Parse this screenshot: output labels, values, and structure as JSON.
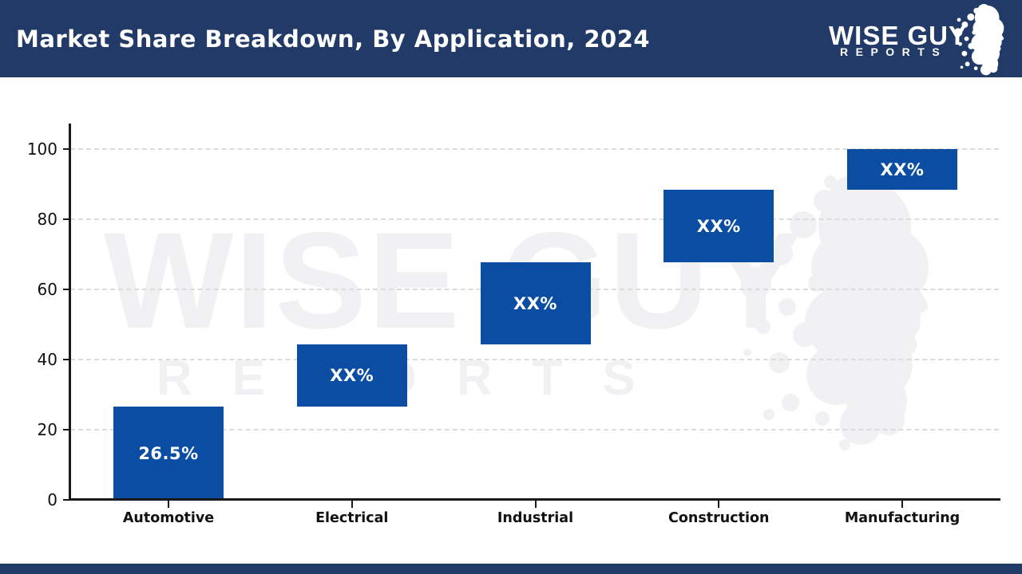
{
  "header": {
    "title": "Market Share Breakdown, By Application, 2024",
    "logo": {
      "line1": "WISE GUY",
      "line2": "REPORTS"
    }
  },
  "watermark": {
    "line1": "WISE GUY",
    "line2": "REPORTS"
  },
  "footer": {},
  "colors": {
    "header_bg": "#223a67",
    "footer_bg": "#223a67",
    "bar_blue": "#0b4da2",
    "gridline": "#dcdcdc",
    "axis": "#1a1a1a",
    "watermark": "#f1f1f3",
    "bar_label_text": "#ffffff"
  },
  "chart_data": {
    "type": "bar",
    "variant": "floating-waterfall",
    "title": "Market Share Breakdown, By Application, 2024",
    "categories": [
      "Automotive",
      "Electrical",
      "Industrial",
      "Construction",
      "Manufacturing"
    ],
    "bars": [
      {
        "category": "Automotive",
        "start": 0,
        "end": 26.5,
        "label": "26.5%"
      },
      {
        "category": "Electrical",
        "start": 26.5,
        "end": 44.3,
        "label": "XX%"
      },
      {
        "category": "Industrial",
        "start": 44.3,
        "end": 67.7,
        "label": "XX%"
      },
      {
        "category": "Construction",
        "start": 67.7,
        "end": 88.4,
        "label": "XX%"
      },
      {
        "category": "Manufacturing",
        "start": 88.4,
        "end": 100,
        "label": "XX%"
      }
    ],
    "xlabel": "",
    "ylabel": "",
    "yticks": [
      0,
      20,
      40,
      60,
      80,
      100
    ],
    "ylim": [
      0,
      100
    ],
    "grid": "dashed-horizontal",
    "legend": "none",
    "bar_color": "#0b4da2"
  }
}
